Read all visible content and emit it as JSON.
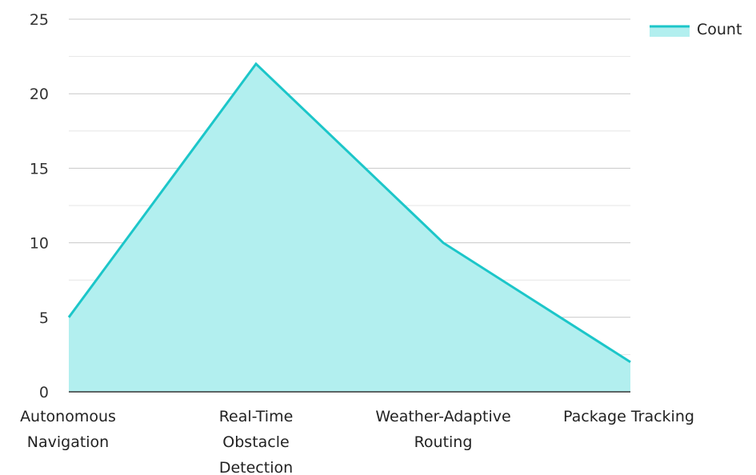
{
  "chart_data": {
    "type": "area",
    "categories": [
      [
        "Autonomous",
        "Navigation"
      ],
      [
        "Real-Time",
        "Obstacle",
        "Detection"
      ],
      [
        "Weather-Adaptive",
        "Routing"
      ],
      [
        "Package Tracking"
      ]
    ],
    "series": [
      {
        "name": "Count",
        "values": [
          5,
          22,
          10,
          2
        ]
      }
    ],
    "ylim": [
      0,
      25
    ],
    "yticks": [
      0,
      5,
      10,
      15,
      20,
      25
    ],
    "grid": true,
    "legend": "top-right",
    "colors": {
      "line": "#1cc6c9",
      "fill": "#b2efef",
      "grid_major": "#c8c8c8",
      "grid_minor": "#e6e6e6",
      "axis": "#333333"
    }
  }
}
